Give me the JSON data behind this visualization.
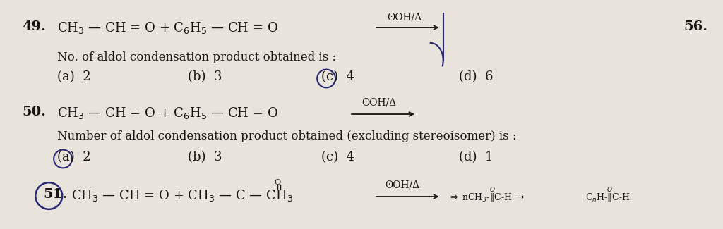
{
  "background_color": "#e8e4dc",
  "text_color": "#1a1510",
  "fig_width": 10.24,
  "fig_height": 3.25,
  "dpi": 100,
  "q49_num": "49.",
  "q49_eq": "CH$_3$ — CH = O + C$_6$H$_5$ — CH = O",
  "q49_reagent": "ʘOH/Δ",
  "q49_desc": "No. of aldol condensation product obtained is :",
  "q49_a": "(a)  2",
  "q49_b": "(b)  3",
  "q49_c": "(c)  4",
  "q49_d": "(d)  6",
  "q50_num": "50.",
  "q50_eq": "CH$_3$ — CH = O + C$_6$H$_5$ — CH = O",
  "q50_reagent": "ʘOH/Δ",
  "q50_desc": "Number of aldol condensation product obtained (excluding stereoisomer) is :",
  "q50_a": "(a)  2",
  "q50_b": "(b)  3",
  "q50_c": "(c)  4",
  "q50_d": "(d)  1",
  "q51_num": "51.",
  "q51_eq": "CH$_3$ — CH = O + CH$_3$ — C — CH$_3$",
  "q51_reagent": "ʘOH/Δ",
  "page_num": "56.",
  "fs_qnum": 14,
  "fs_eq": 13,
  "fs_desc": 12,
  "fs_opt": 13,
  "fs_reagent": 10,
  "fs_page": 14
}
